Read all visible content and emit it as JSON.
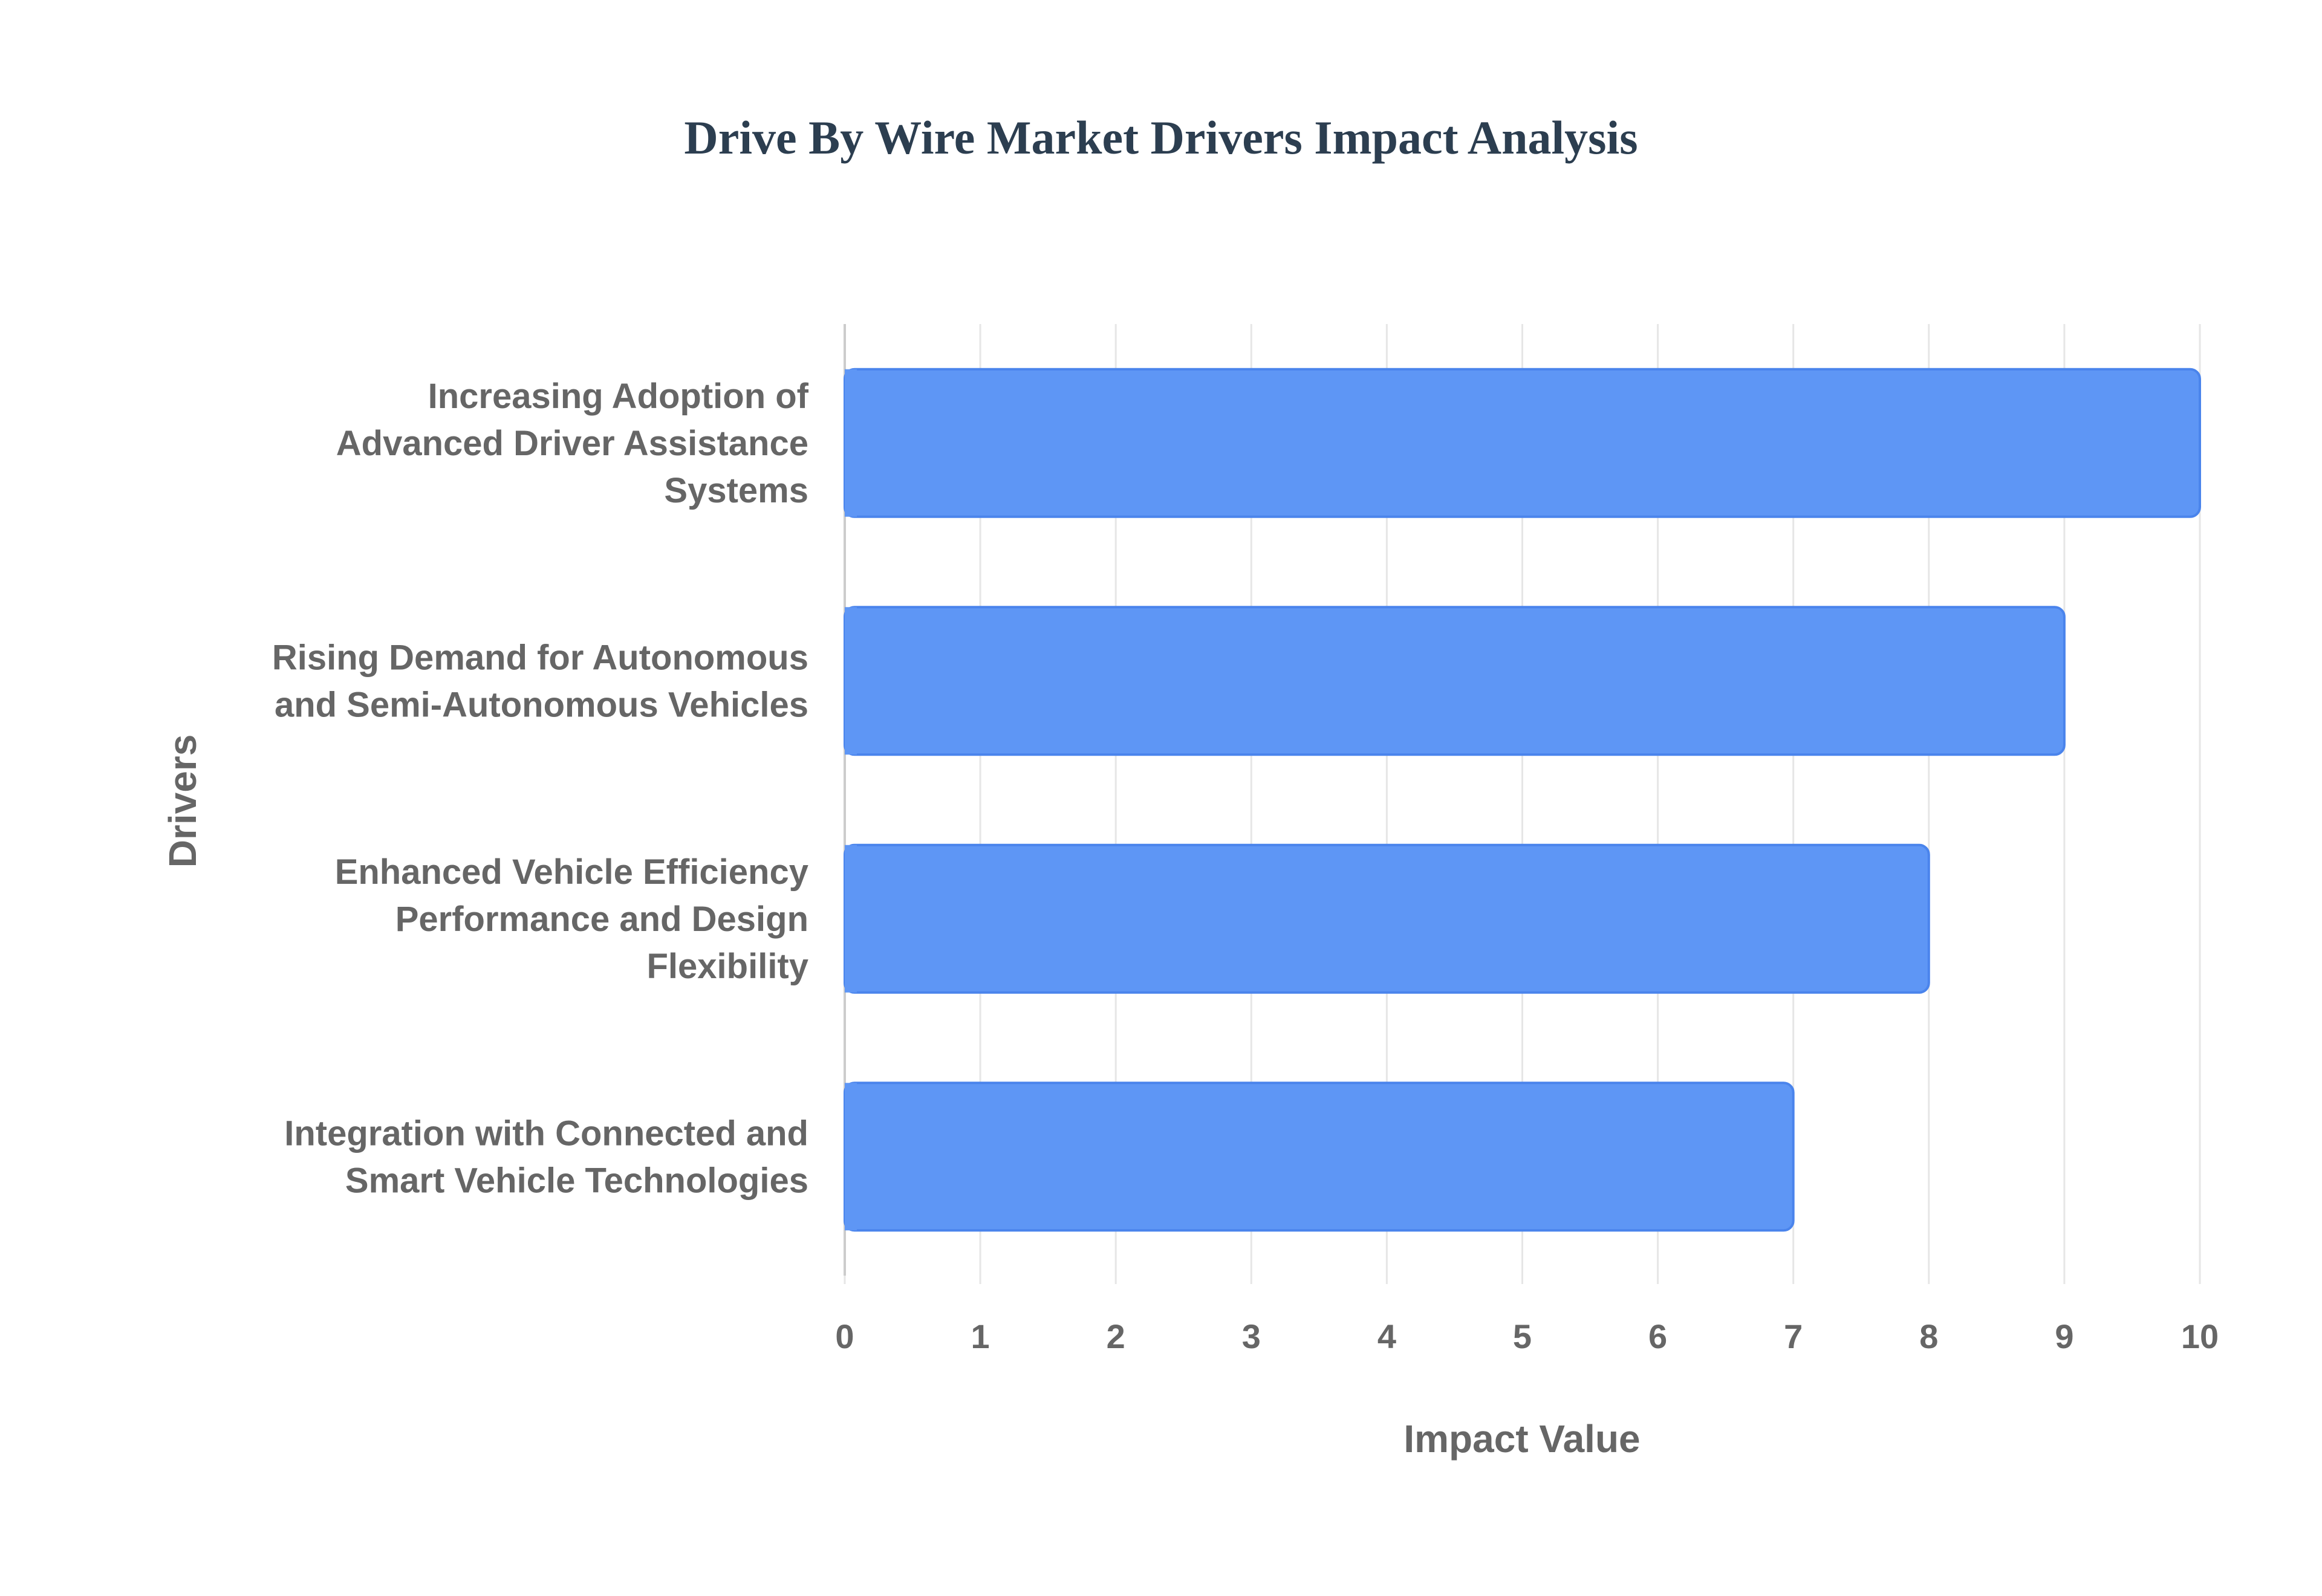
{
  "chart_data": {
    "type": "bar",
    "orientation": "horizontal",
    "title": "Drive By Wire Market Drivers Impact Analysis",
    "xlabel": "Impact Value",
    "ylabel": "Drivers",
    "xlim": [
      0,
      10
    ],
    "x_ticks": [
      "0",
      "1",
      "2",
      "3",
      "4",
      "5",
      "6",
      "7",
      "8",
      "9",
      "10"
    ],
    "grid": true,
    "categories": [
      [
        "Increasing Adoption of",
        "Advanced Driver Assistance",
        "Systems"
      ],
      [
        "Rising Demand for Autonomous",
        "and Semi-Autonomous Vehicles"
      ],
      [
        "Enhanced Vehicle Efficiency",
        "Performance and Design",
        "Flexibility"
      ],
      [
        "Integration with Connected and",
        "Smart Vehicle Technologies"
      ]
    ],
    "values": [
      10,
      9,
      8,
      7
    ],
    "colors": {
      "bar_fill": "#5e96f5",
      "bar_stroke": "#4a84ec",
      "title": "#2c3e50",
      "label": "#666666",
      "grid": "#e6e6e6",
      "axis": "#cccccc"
    }
  }
}
